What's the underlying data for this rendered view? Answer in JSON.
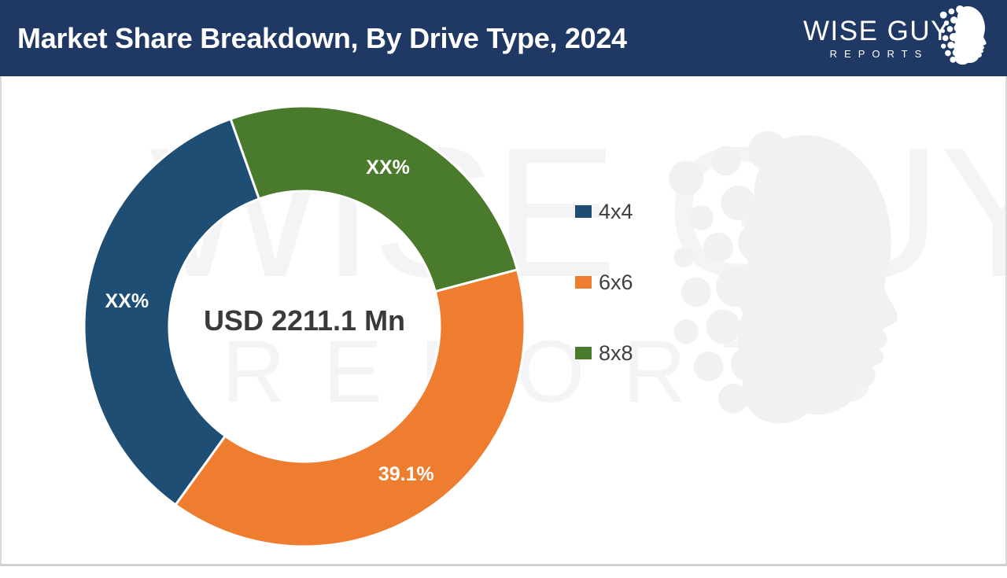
{
  "header": {
    "title": "Market Share Breakdown, By Drive Type, 2024",
    "bg_color": "#1f3864",
    "logo": {
      "line1": "WISE GUY",
      "line2": "REPORTS"
    }
  },
  "watermark": {
    "line1": "WISE GUY",
    "line2": "REPORTS"
  },
  "chart_data": {
    "type": "donut",
    "title": "Market Share Breakdown, By Drive Type, 2024",
    "center_label": "USD 2211.1 Mn",
    "start_angle_deg": -19.6,
    "outer_radius_px": 280,
    "inner_radius_px": 172,
    "segments": [
      {
        "name": "8x8",
        "percent": 26.3,
        "label": "XX%",
        "color": "#4a7a2b"
      },
      {
        "name": "6x6",
        "percent": 39.1,
        "label": "39.1%",
        "color": "#ee7d30"
      },
      {
        "name": "4x4",
        "percent": 34.6,
        "label": "XX%",
        "color": "#1f4e74"
      }
    ],
    "legend": [
      {
        "name": "4x4",
        "color": "#1f4e74"
      },
      {
        "name": "6x6",
        "color": "#ee7d30"
      },
      {
        "name": "8x8",
        "color": "#4a7a2b"
      }
    ],
    "legend_position": "right"
  }
}
